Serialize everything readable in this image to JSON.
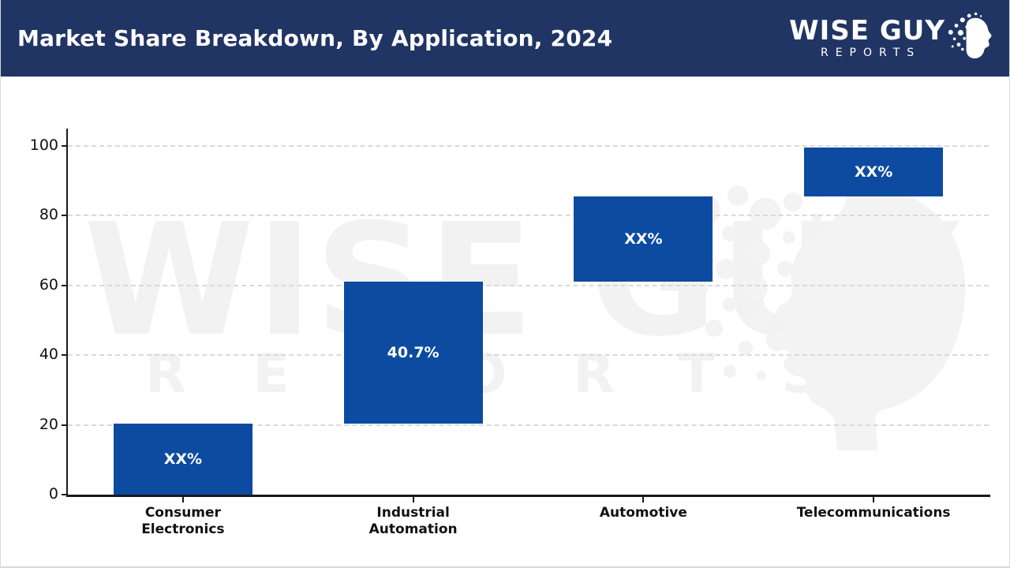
{
  "header": {
    "title": "Market Share Breakdown, By Application, 2024",
    "bg_color": "#213564",
    "logo": {
      "line1": "WISE GUY",
      "line2": "REPORTS"
    }
  },
  "watermark": {
    "line1": "WISE GUY",
    "line2": "REPORTS"
  },
  "chart_data": {
    "type": "bar",
    "subtype": "waterfall-floating-bars",
    "title": "Market Share Breakdown, By Application, 2024",
    "xlabel": "",
    "ylabel": "",
    "categories": [
      "Consumer Electronics",
      "Industrial Automation",
      "Automotive",
      "Telecommunications"
    ],
    "category_lines": [
      [
        "Consumer",
        "Electronics"
      ],
      [
        "Industrial",
        "Automation"
      ],
      [
        "Automotive"
      ],
      [
        "Telecommunications"
      ]
    ],
    "series": [
      {
        "name": "Market Share (%)",
        "segments": [
          {
            "category": "Consumer Electronics",
            "start": 0,
            "end": 20.3,
            "label": "XX%"
          },
          {
            "category": "Industrial Automation",
            "start": 20.3,
            "end": 61.0,
            "label": "40.7%"
          },
          {
            "category": "Automotive",
            "start": 61.0,
            "end": 85.5,
            "label": "XX%"
          },
          {
            "category": "Telecommunications",
            "start": 85.5,
            "end": 99.5,
            "label": "XX%"
          }
        ]
      }
    ],
    "yticks": [
      0,
      20,
      40,
      60,
      80,
      100
    ],
    "ylim": [
      0,
      105
    ],
    "grid": "horizontal-dashed",
    "legend": "none",
    "bar_color": "#0c4ba0",
    "bar_label_color": "#ffffff",
    "axis_color": "#1a1a1a",
    "gridline_color": "#d9d9d9"
  }
}
